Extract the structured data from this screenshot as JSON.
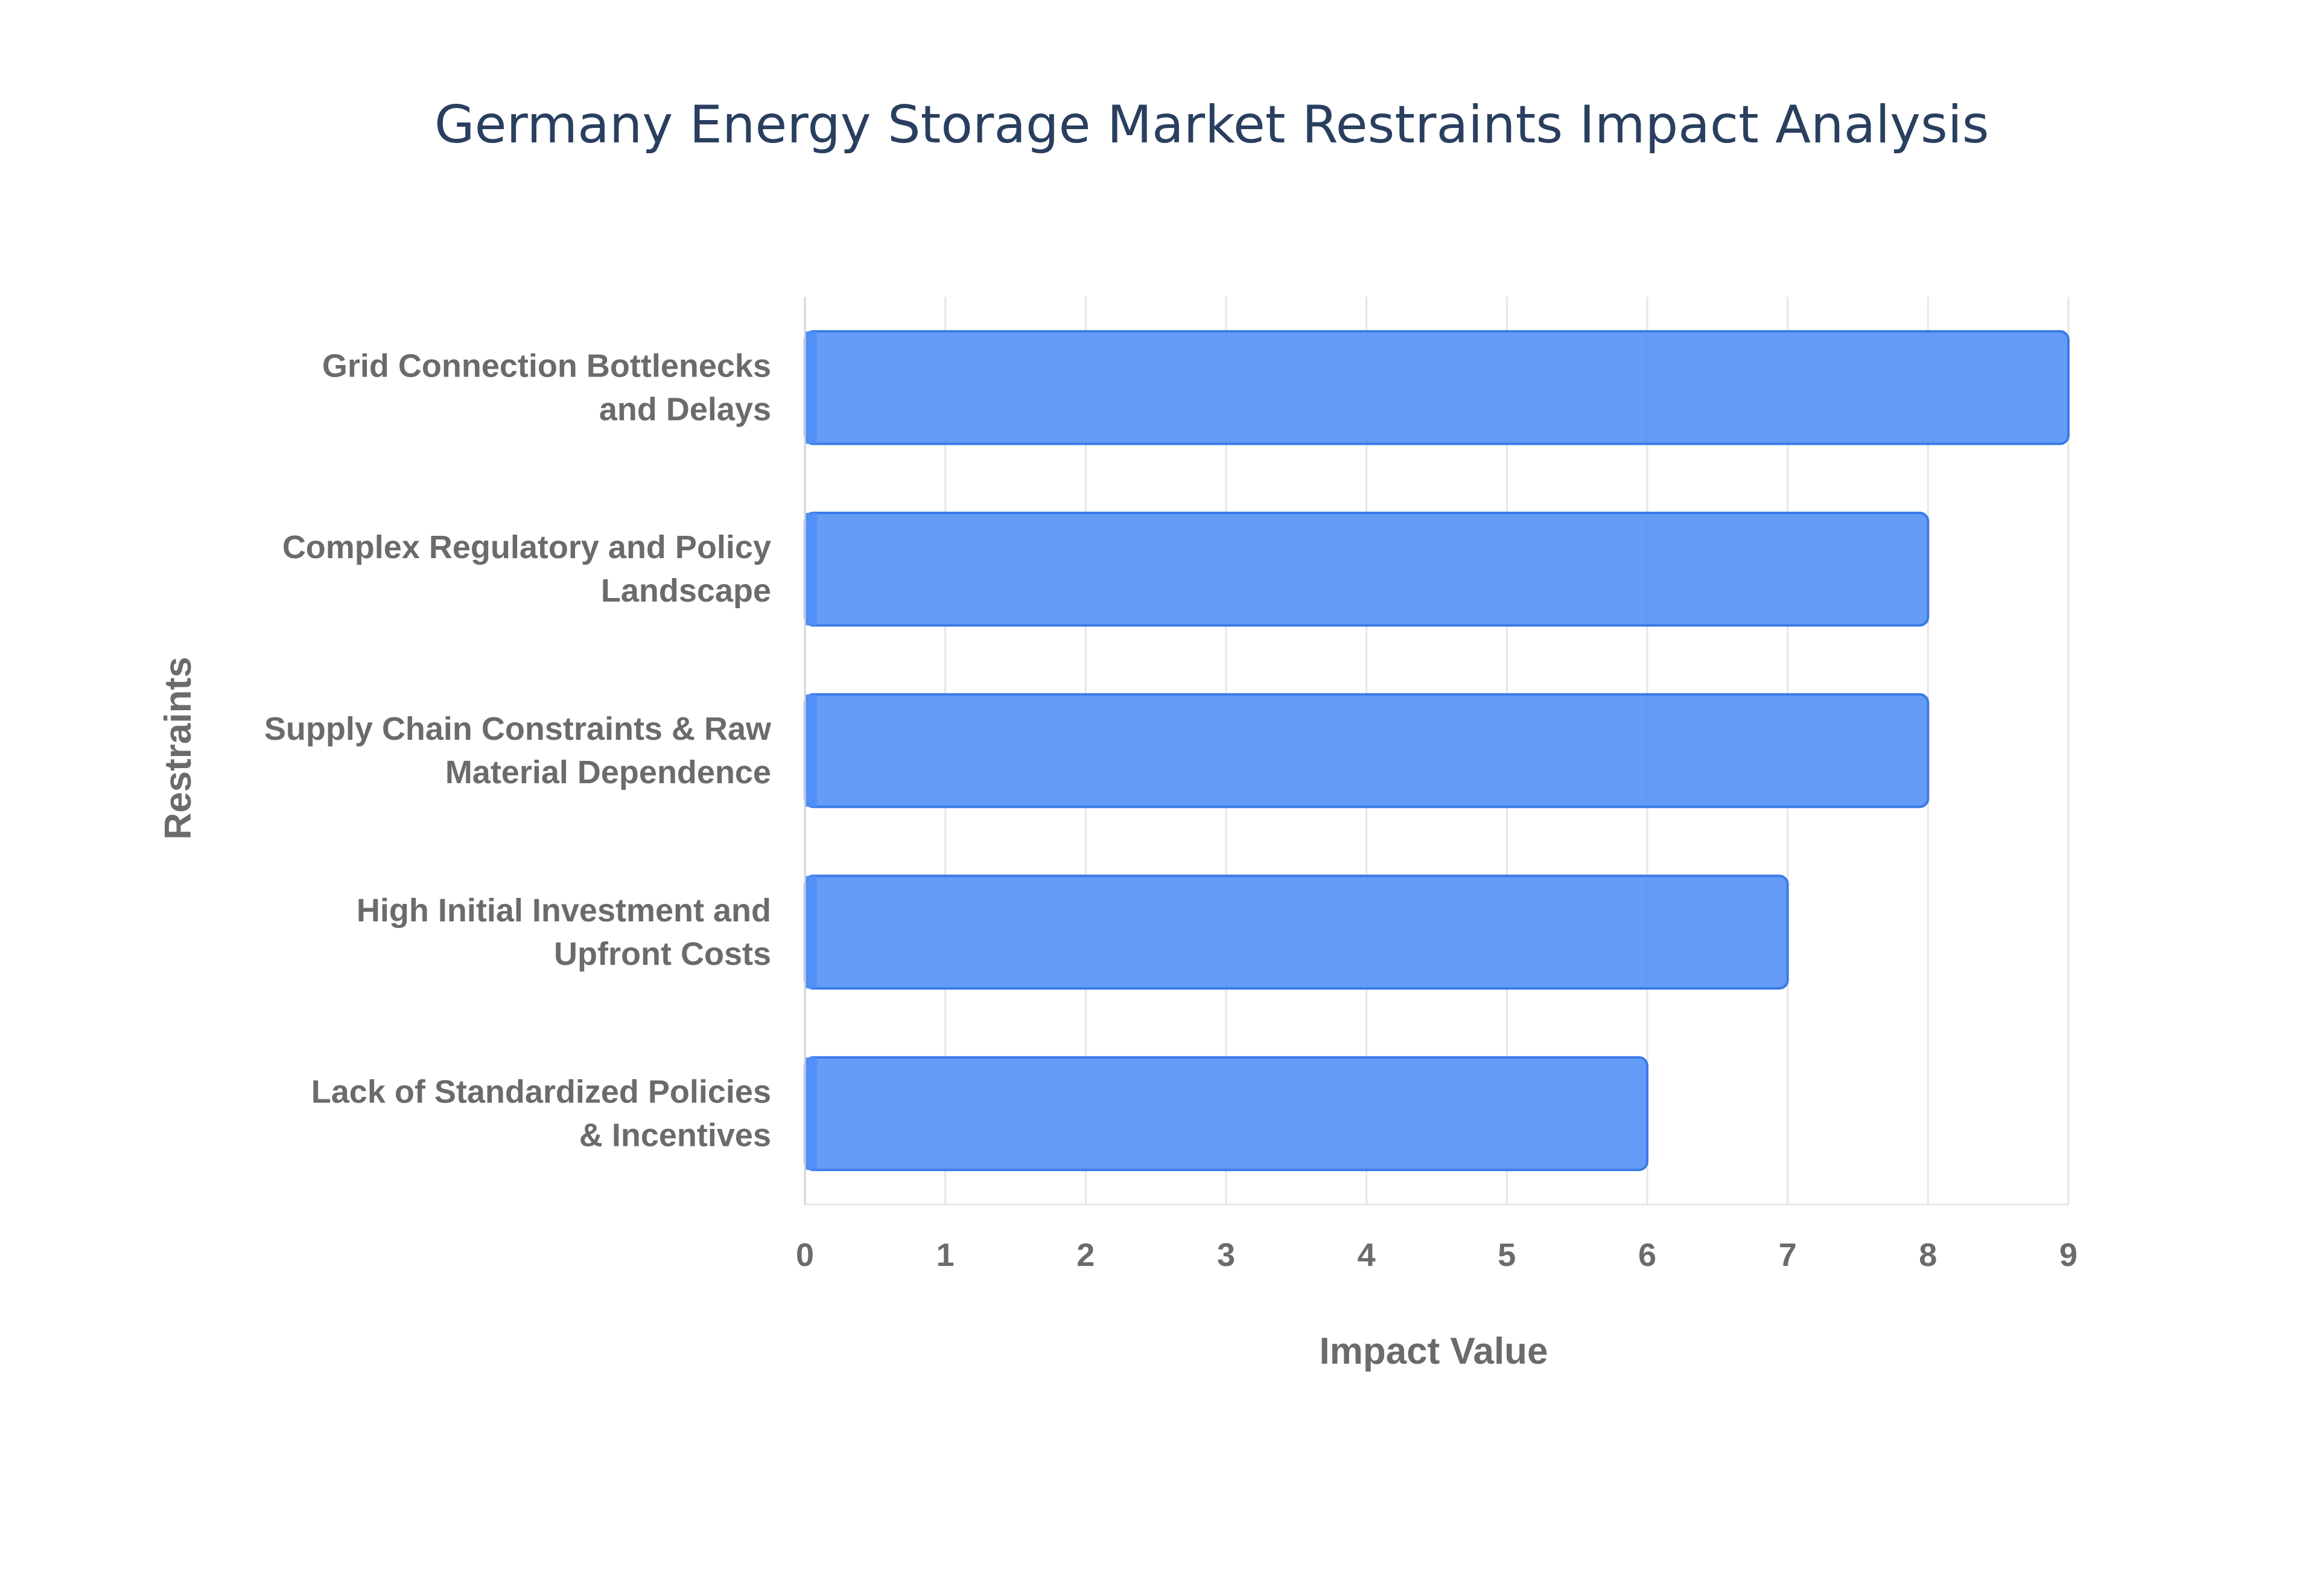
{
  "chart_data": {
    "type": "bar",
    "orientation": "horizontal",
    "title": "Germany Energy Storage Market Restraints Impact Analysis",
    "xlabel": "Impact Value",
    "ylabel": "Restraints",
    "xlim": [
      0,
      9
    ],
    "xticks": [
      "0",
      "1",
      "2",
      "3",
      "4",
      "5",
      "6",
      "7",
      "8",
      "9"
    ],
    "grid": true,
    "bar_color": "#4f8ef7",
    "categories": [
      [
        "Grid Connection Bottlenecks",
        "and Delays"
      ],
      [
        "Complex Regulatory and Policy",
        "Landscape"
      ],
      [
        "Supply Chain Constraints & Raw",
        "Material Dependence"
      ],
      [
        "High Initial Investment and",
        "Upfront Costs"
      ],
      [
        "Lack of Standardized Policies",
        "& Incentives"
      ]
    ],
    "values": [
      9,
      8,
      8,
      7,
      6
    ]
  }
}
